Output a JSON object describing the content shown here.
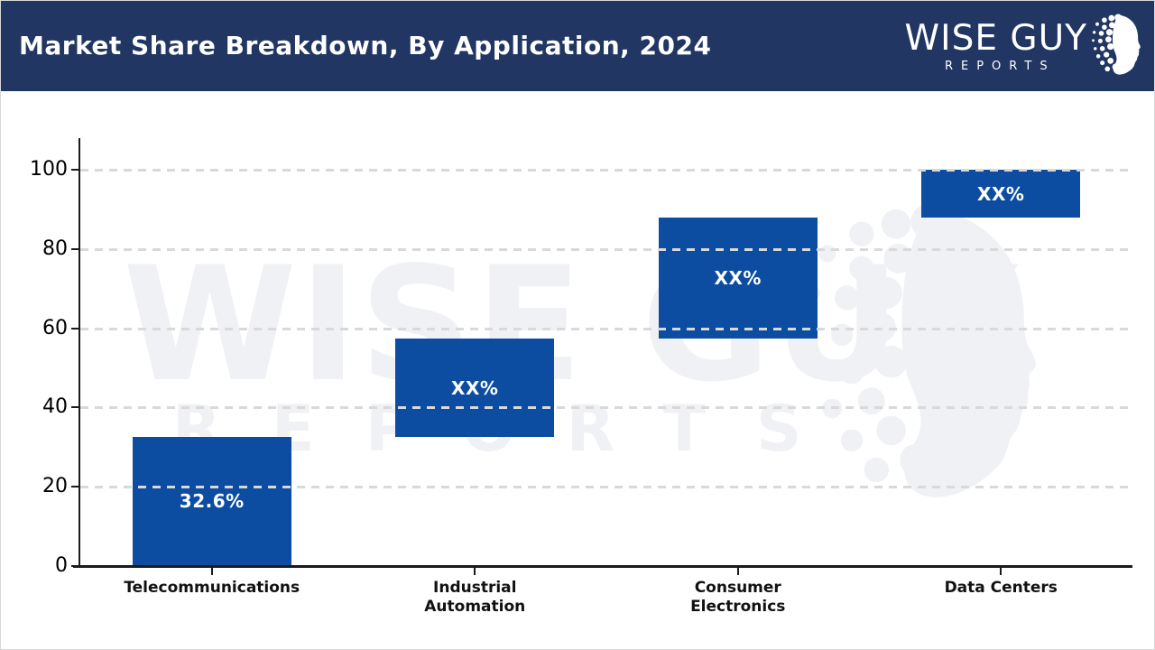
{
  "header": {
    "title": "Market Share Breakdown, By Application, 2024",
    "logo": {
      "line1": "WISE GUY",
      "line2": "REPORTS"
    }
  },
  "watermark": {
    "line1": "WISE GUY",
    "line2": "REPORTS"
  },
  "chart_data": {
    "type": "bar",
    "subtype": "waterfall",
    "title": "Market Share Breakdown, By Application, 2024",
    "categories": [
      "Telecommunications",
      "Industrial Automation",
      "Consumer Electronics",
      "Data Centers"
    ],
    "category_lines": [
      [
        "Telecommunications"
      ],
      [
        "Industrial",
        "Automation"
      ],
      [
        "Consumer",
        "Electronics"
      ],
      [
        "Data Centers"
      ]
    ],
    "segments": [
      {
        "category": "Telecommunications",
        "start": 0,
        "end": 32.6,
        "label": "32.6%"
      },
      {
        "category": "Industrial Automation",
        "start": 32.6,
        "end": 57.4,
        "label": "XX%"
      },
      {
        "category": "Consumer Electronics",
        "start": 57.4,
        "end": 87.9,
        "label": "XX%"
      },
      {
        "category": "Data Centers",
        "start": 87.9,
        "end": 100,
        "label": "XX%"
      }
    ],
    "yticks": [
      0,
      20,
      40,
      60,
      80,
      100
    ],
    "ylim": [
      0,
      108
    ],
    "grid": "horizontal-dashed",
    "legend_position": "none",
    "bar_color": "#0c4da2",
    "bar_label_color": "#ffffff",
    "header_color": "#213663",
    "watermark_color": "#f0f1f4"
  }
}
